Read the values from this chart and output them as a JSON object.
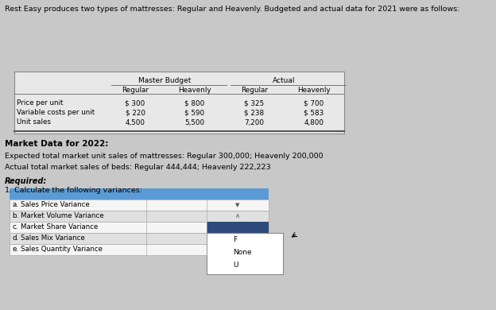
{
  "title": "Rest Easy produces two types of mattresses: Regular and Heavenly. Budgeted and actual data for 2021 were as follows:",
  "table_rows": [
    [
      "Price per unit",
      "$ 300",
      "$ 800",
      "$ 325",
      "$ 700"
    ],
    [
      "Variable costs per unit",
      "$ 220",
      "$ 590",
      "$ 238",
      "$ 583"
    ],
    [
      "Unit sales",
      "4,500",
      "5,500",
      "7,200",
      "4,800"
    ]
  ],
  "market_data_title": "Market Data for 2022:",
  "expected_text": "Expected total market unit sales of mattresses: Regular 300,000; Heavenly 200,000",
  "actual_text": "Actual total market sales of beds: Regular 444,444; Heavenly 222,223",
  "required_title": "Required:",
  "required_text": "1. Calculate the following variances:",
  "variance_rows": [
    [
      "a.",
      "Sales Price Variance"
    ],
    [
      "b.",
      "Market Volume Variance"
    ],
    [
      "c.",
      "Market Share Variance"
    ],
    [
      "d.",
      "Sales Mix Variance"
    ],
    [
      "e.",
      "Sales Quantity Variance"
    ]
  ],
  "dropdown_items": [
    "F",
    "None",
    "U"
  ],
  "bg_color": "#c8c8c8",
  "table_bg": "#e8e8e8",
  "header_blue": "#5b9bd5",
  "dropdown_dark_blue": "#2e4a7a",
  "cell_white": "#f5f5f5",
  "cell_gray": "#e0e0e0"
}
